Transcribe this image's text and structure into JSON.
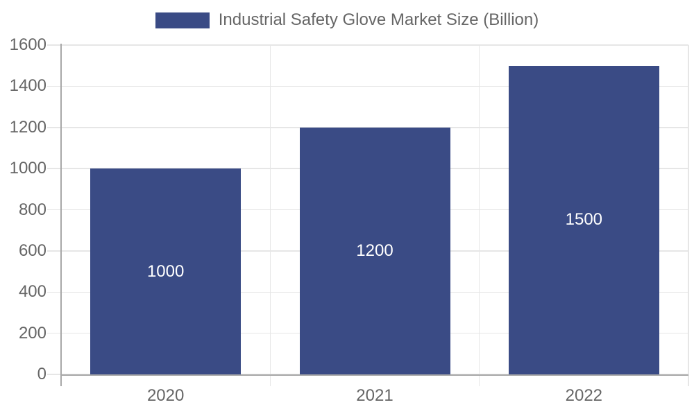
{
  "legend": {
    "label": "Industrial Safety Glove Market Size (Billion)"
  },
  "chart_data": {
    "type": "bar",
    "title": "",
    "xlabel": "",
    "ylabel": "",
    "categories": [
      "2020",
      "2021",
      "2022"
    ],
    "series": [
      {
        "name": "Industrial Safety Glove Market Size (Billion)",
        "values": [
          1000,
          1200,
          1500
        ],
        "data_labels": [
          "1000",
          "1200",
          "1500"
        ],
        "color": "#3a4b85"
      }
    ],
    "ylim": [
      0,
      1600
    ],
    "yticks": [
      0,
      200,
      400,
      600,
      800,
      1000,
      1200,
      1400,
      1600
    ],
    "grid": true,
    "legend_position": "top",
    "data_label_color": "#ffffff",
    "colors": {
      "grid": "#e6e6e6",
      "axis": "#a8a8a8",
      "tick_label": "#666666",
      "background": "#ffffff"
    }
  }
}
